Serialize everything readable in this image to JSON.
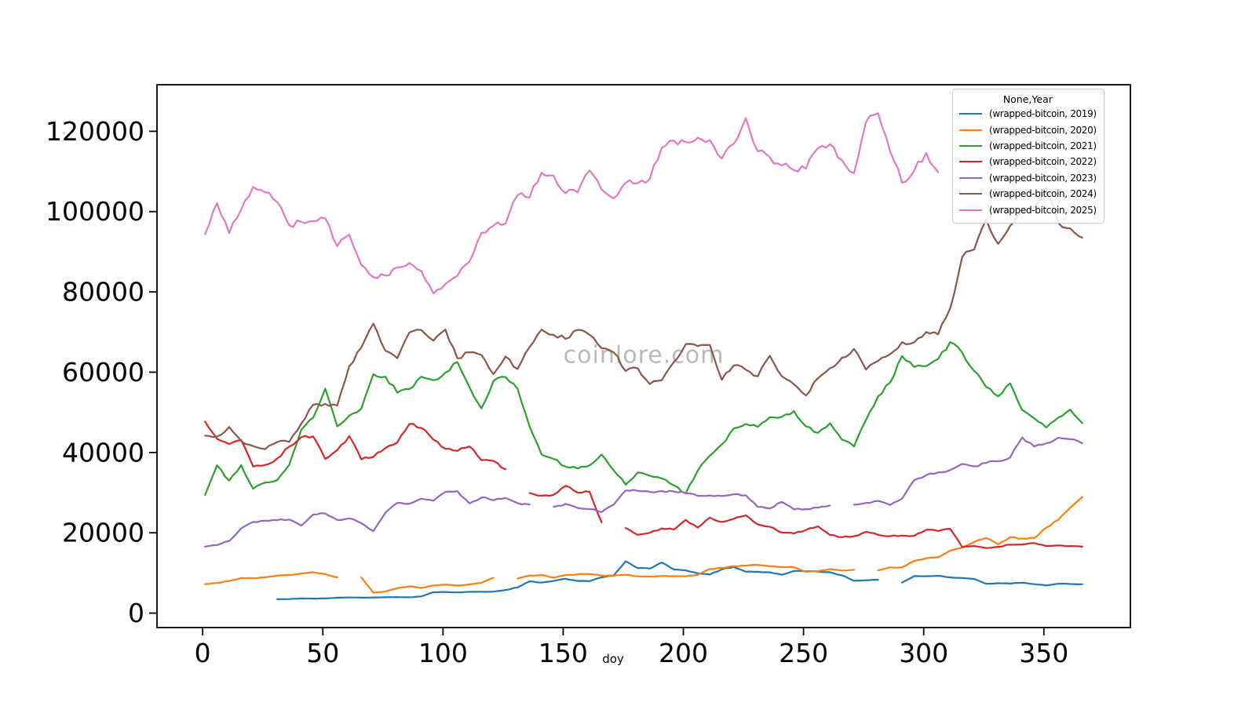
{
  "figure": {
    "watermark": "coinlore.com",
    "xlabel": "doy",
    "background": "#ffffff"
  },
  "legend": {
    "title": "None,Year",
    "entries": [
      {
        "label": "(wrapped-bitcoin, 2019)",
        "year": "2019",
        "color": "#1f77b4"
      },
      {
        "label": "(wrapped-bitcoin, 2020)",
        "year": "2020",
        "color": "#ff7f0e"
      },
      {
        "label": "(wrapped-bitcoin, 2021)",
        "year": "2021",
        "color": "#2ca02c"
      },
      {
        "label": "(wrapped-bitcoin, 2022)",
        "year": "2022",
        "color": "#d62728"
      },
      {
        "label": "(wrapped-bitcoin, 2023)",
        "year": "2023",
        "color": "#9467bd"
      },
      {
        "label": "(wrapped-bitcoin, 2024)",
        "year": "2024",
        "color": "#8c564b"
      },
      {
        "label": "(wrapped-bitcoin, 2025)",
        "year": "2025",
        "color": "#e377c2"
      }
    ]
  },
  "chart_data": {
    "type": "line",
    "title": "",
    "xlabel": "doy",
    "ylabel": "",
    "grid": false,
    "legend_position": "upper right",
    "legend_title": "None,Year",
    "xlim": [
      -19,
      386
    ],
    "ylim": [
      -3600,
      131600
    ],
    "x_ticks": [
      0,
      50,
      100,
      150,
      200,
      250,
      300,
      350
    ],
    "y_ticks": [
      0,
      20000,
      40000,
      60000,
      80000,
      100000,
      120000
    ],
    "x": [
      1,
      6,
      11,
      16,
      21,
      26,
      31,
      36,
      41,
      46,
      51,
      56,
      61,
      66,
      71,
      76,
      81,
      86,
      91,
      96,
      101,
      106,
      111,
      116,
      121,
      126,
      131,
      136,
      141,
      146,
      151,
      156,
      161,
      166,
      171,
      176,
      181,
      186,
      191,
      196,
      201,
      206,
      211,
      216,
      221,
      226,
      231,
      236,
      241,
      246,
      251,
      256,
      261,
      266,
      271,
      276,
      281,
      286,
      291,
      296,
      301,
      306,
      311,
      316,
      321,
      326,
      331,
      336,
      341,
      346,
      351,
      356,
      361,
      366
    ],
    "series": [
      {
        "name": "(wrapped-bitcoin, 2019)",
        "year": 2019,
        "color": "#1f77b4",
        "values": [
          null,
          null,
          null,
          null,
          null,
          null,
          3450,
          3500,
          3650,
          3600,
          3650,
          3850,
          3900,
          3850,
          3900,
          3950,
          4000,
          3950,
          4150,
          5200,
          5250,
          5150,
          5300,
          5300,
          5350,
          5750,
          6400,
          7900,
          7600,
          8000,
          8550,
          8000,
          7950,
          8900,
          9350,
          12900,
          11200,
          11100,
          12600,
          10850,
          10650,
          9900,
          9600,
          10900,
          11500,
          10300,
          10300,
          10150,
          9550,
          10500,
          10400,
          10350,
          10200,
          9400,
          8050,
          8200,
          8300,
          null,
          7600,
          9200,
          9200,
          9300,
          8900,
          8750,
          8500,
          7300,
          7450,
          7350,
          7550,
          7200,
          6900,
          7300,
          7250,
          7200
        ]
      },
      {
        "name": "(wrapped-bitcoin, 2020)",
        "year": 2020,
        "color": "#ff7f0e",
        "values": [
          7200,
          7500,
          8020,
          8720,
          8660,
          8900,
          9330,
          9500,
          9860,
          10200,
          9680,
          8900,
          null,
          8900,
          5050,
          5350,
          6200,
          6700,
          6250,
          6900,
          7100,
          6850,
          7150,
          7550,
          8780,
          null,
          8600,
          9350,
          9500,
          8850,
          9450,
          9650,
          9750,
          9350,
          9300,
          9550,
          9150,
          9100,
          9250,
          9200,
          9150,
          9550,
          11000,
          11250,
          11700,
          11800,
          12000,
          11650,
          11500,
          11400,
          10250,
          10450,
          10950,
          10600,
          10800,
          null,
          10650,
          11400,
          11400,
          12950,
          13650,
          13900,
          15550,
          16300,
          17700,
          18700,
          17150,
          18900,
          18550,
          18700,
          21300,
          23250,
          26300,
          28950
        ]
      },
      {
        "name": "(wrapped-bitcoin, 2021)",
        "year": 2021,
        "color": "#2ca02c",
        "values": [
          29400,
          36800,
          33000,
          36850,
          31000,
          32500,
          33100,
          36900,
          45600,
          48700,
          55900,
          46500,
          49200,
          50900,
          59500,
          58900,
          54900,
          55800,
          58900,
          58000,
          59900,
          62500,
          56300,
          51000,
          57800,
          58800,
          55900,
          46500,
          39500,
          38400,
          36500,
          36000,
          36800,
          39500,
          35600,
          32000,
          35000,
          34200,
          33550,
          31800,
          29800,
          35500,
          39200,
          42000,
          46000,
          47100,
          46400,
          48800,
          48900,
          50300,
          46500,
          44900,
          47300,
          43200,
          41500,
          48100,
          53950,
          57400,
          64000,
          61300,
          61500,
          63300,
          67500,
          64900,
          60300,
          56300,
          54000,
          57200,
          50600,
          48500,
          46200,
          48700,
          50700,
          47300
        ]
      },
      {
        "name": "(wrapped-bitcoin, 2022)",
        "year": 2022,
        "color": "#d62728",
        "values": [
          47700,
          43400,
          42100,
          43100,
          36500,
          36900,
          38500,
          41500,
          43800,
          44000,
          38400,
          40600,
          44100,
          38300,
          38900,
          41100,
          42500,
          47100,
          46100,
          43200,
          40900,
          40400,
          41500,
          38100,
          37900,
          35800,
          null,
          29900,
          29250,
          29450,
          31700,
          30000,
          30200,
          22600,
          null,
          21200,
          19500,
          20000,
          21100,
          20800,
          23200,
          21300,
          23800,
          22700,
          23500,
          24350,
          22100,
          21500,
          20050,
          19850,
          20700,
          21600,
          19450,
          18900,
          19150,
          20250,
          19500,
          19150,
          19300,
          19250,
          20750,
          20450,
          21000,
          16450,
          16700,
          16200,
          16500,
          17050,
          17100,
          17450,
          16700,
          16850,
          16700,
          16550
        ]
      },
      {
        "name": "(wrapped-bitcoin, 2023)",
        "year": 2023,
        "color": "#9467bd",
        "values": [
          16550,
          16950,
          17950,
          21100,
          22700,
          23000,
          23150,
          23300,
          21800,
          24550,
          24800,
          23200,
          23600,
          22400,
          20400,
          25000,
          27450,
          27250,
          28500,
          28000,
          30200,
          30350,
          27350,
          28800,
          28100,
          28700,
          27400,
          27050,
          null,
          26450,
          27200,
          26200,
          25900,
          25150,
          27000,
          30550,
          30450,
          30200,
          30400,
          30300,
          29850,
          29200,
          29300,
          29150,
          29600,
          29350,
          26450,
          26050,
          27700,
          25850,
          25900,
          26250,
          26800,
          null,
          27000,
          27450,
          27950,
          26900,
          28500,
          33100,
          34350,
          35050,
          35650,
          37150,
          36550,
          37400,
          37800,
          38750,
          43750,
          41500,
          42300,
          43700,
          43300,
          42300
        ]
      },
      {
        "name": "(wrapped-bitcoin, 2024)",
        "year": 2024,
        "color": "#8c564b",
        "values": [
          44200,
          44000,
          46350,
          42900,
          41600,
          40850,
          42600,
          42650,
          47150,
          51900,
          52100,
          51700,
          61500,
          66100,
          72100,
          65350,
          63500,
          69900,
          70500,
          67850,
          70650,
          63450,
          64950,
          64300,
          59500,
          63900,
          60800,
          66250,
          70600,
          69300,
          68300,
          70550,
          69300,
          66000,
          64950,
          60300,
          61000,
          57050,
          58000,
          62500,
          67000,
          66500,
          66800,
          58100,
          61700,
          60600,
          59000,
          64100,
          59000,
          57000,
          54200,
          58500,
          61000,
          63600,
          65800,
          60650,
          62800,
          64500,
          67500,
          67400,
          70000,
          69450,
          75900,
          88700,
          90550,
          98000,
          91950,
          96500,
          99900,
          101100,
          106000,
          97200,
          95800,
          93500
        ]
      },
      {
        "name": "(wrapped-bitcoin, 2025)",
        "year": 2025,
        "color": "#e377c2",
        "values": [
          94400,
          102100,
          94600,
          100500,
          106150,
          104800,
          102400,
          96600,
          97450,
          97600,
          98300,
          91400,
          94250,
          86700,
          83700,
          84050,
          86100,
          87200,
          85200,
          79600,
          82000,
          84000,
          87500,
          94700,
          96500,
          97000,
          104100,
          103500,
          109700,
          109000,
          104600,
          104800,
          110250,
          105500,
          103300,
          107200,
          107100,
          108100,
          115900,
          117700,
          117300,
          118400,
          117800,
          113200,
          116900,
          123300,
          115000,
          113500,
          111500,
          110300,
          110700,
          115800,
          116800,
          112800,
          109600,
          122300,
          124500,
          115100,
          107200,
          110100,
          114600,
          109800,
          null,
          null,
          null,
          null,
          null,
          null,
          null,
          null,
          null,
          null,
          null,
          null
        ]
      }
    ]
  }
}
